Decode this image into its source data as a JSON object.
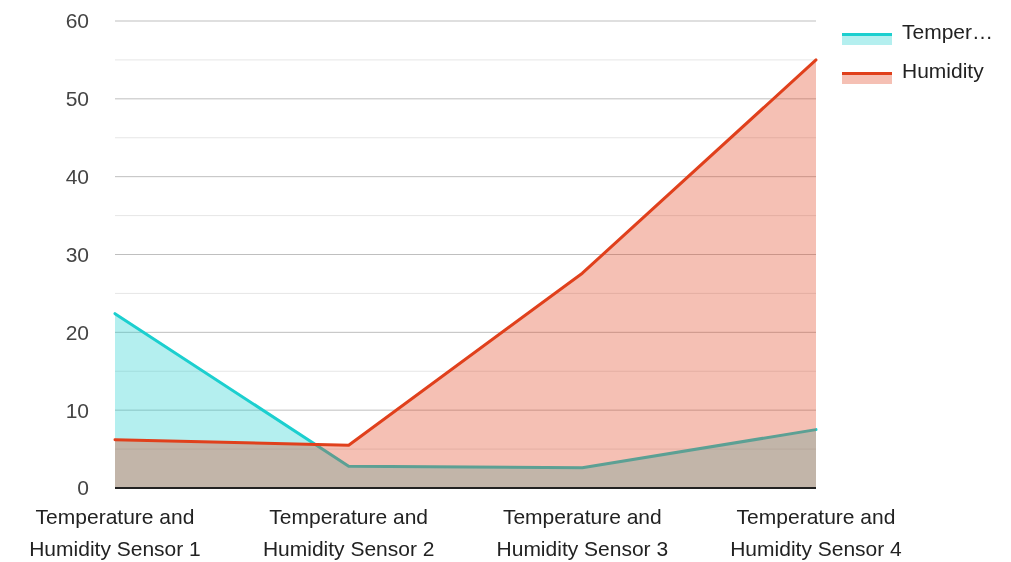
{
  "chart_data": {
    "type": "area",
    "categories": [
      "Temperature and Humidity Sensor 1",
      "Temperature and Humidity Sensor 2",
      "Temperature and Humidity Sensor 3",
      "Temperature and Humidity Sensor 4"
    ],
    "series": [
      {
        "name": "Temper…",
        "color": "#1ccfcf",
        "values": [
          22.4,
          2.8,
          2.6,
          7.5
        ]
      },
      {
        "name": "Humidity",
        "color": "#e0401c",
        "values": [
          6.2,
          5.5,
          27.6,
          55
        ]
      }
    ],
    "ylim": [
      0,
      60
    ],
    "yticks": [
      0,
      {
        "value": 5,
        "label": null
      },
      10,
      {
        "value": 15,
        "label": null
      },
      20,
      {
        "value": 25,
        "label": null
      },
      30,
      {
        "value": 35,
        "label": null
      },
      40,
      {
        "value": 45,
        "label": null
      },
      50,
      {
        "value": 55,
        "label": null
      },
      60
    ],
    "grid": "y",
    "legend": "top right"
  }
}
